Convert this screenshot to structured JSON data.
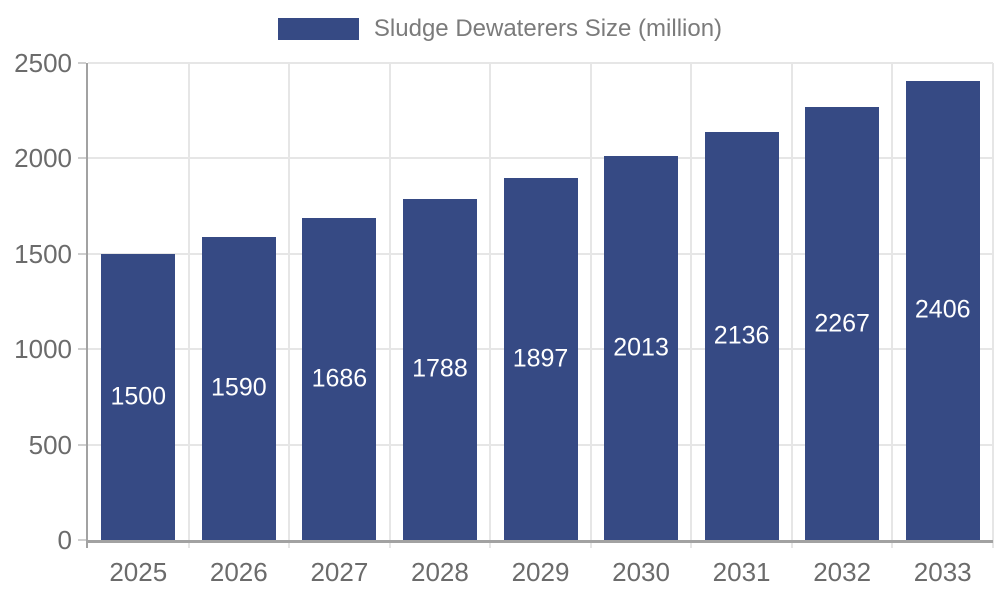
{
  "legend": {
    "label": "Sludge Dewaterers Size (million)"
  },
  "colors": {
    "bar": "#364a84",
    "grid": "#e6e6e6",
    "axis": "#a2a2a2",
    "tick": "#cfcfcf",
    "axis_text": "#6b6b6b",
    "legend_text": "#7b7b7b",
    "bar_label_text": "#ffffff",
    "background": "#ffffff"
  },
  "chart_data": {
    "type": "bar",
    "title": "Sludge Dewaterers Size (million)",
    "categories": [
      "2025",
      "2026",
      "2027",
      "2028",
      "2029",
      "2030",
      "2031",
      "2032",
      "2033"
    ],
    "series": [
      {
        "name": "Sludge Dewaterers Size (million)",
        "values": [
          1500,
          1590,
          1686,
          1788,
          1897,
          2013,
          2136,
          2267,
          2406
        ]
      }
    ],
    "xlabel": "",
    "ylabel": "",
    "ylim": [
      0,
      2500
    ],
    "yticks": [
      0,
      500,
      1000,
      1500,
      2000,
      2500
    ],
    "grid": true,
    "legend_position": "top",
    "bar_value_labels": true
  }
}
